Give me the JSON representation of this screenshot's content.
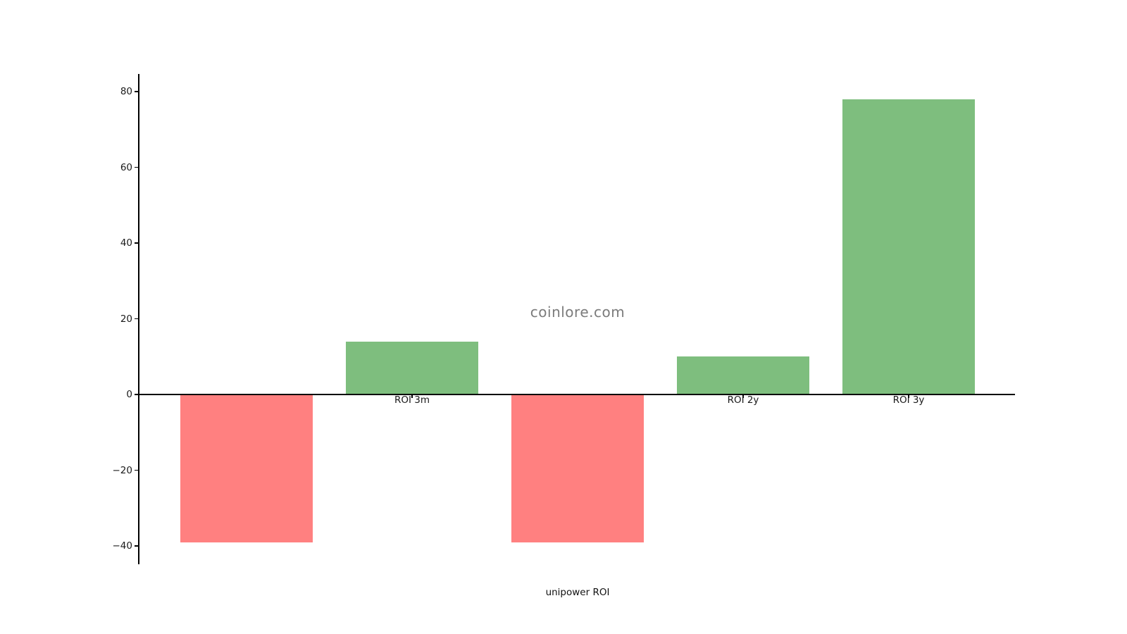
{
  "page": {
    "background": "#ffffff"
  },
  "chart_data": {
    "type": "bar",
    "title": "",
    "xlabel": "unipower ROI",
    "ylabel": "",
    "watermark": "coinlore.com",
    "categories": [
      "",
      "ROI 3m",
      "",
      "ROI 2y",
      "ROI 3y"
    ],
    "values": [
      -39,
      14,
      -39,
      10,
      78
    ],
    "positive_color": "#7ebe7e",
    "negative_color": "#ff8080",
    "y_ticks": [
      80,
      60,
      40,
      20,
      0,
      -20,
      -40
    ],
    "ylim": [
      -45,
      85
    ],
    "grid": false,
    "legend": "none",
    "axis_color": "#000000",
    "tick_label_color": "#1a1a1a",
    "watermark_color": "#7b7b7b"
  }
}
